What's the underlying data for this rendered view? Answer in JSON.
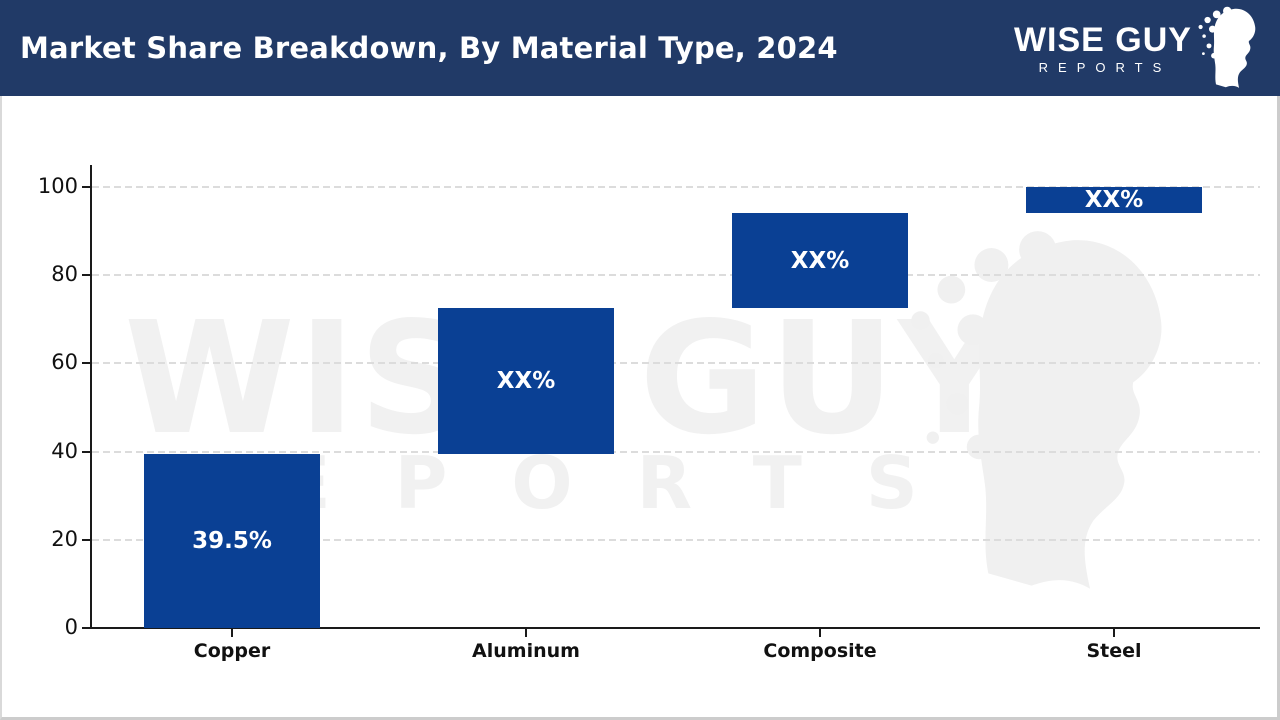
{
  "header": {
    "title": "Market Share Breakdown, By Material Type, 2024",
    "logo": {
      "name": "WISE GUY",
      "subtitle": "REPORTS",
      "face_icon": "dotted-head-profile"
    }
  },
  "watermark": {
    "line1": "WISE GUY",
    "line2": "REPORTS",
    "face_icon": "dotted-head-profile"
  },
  "chart_data": {
    "type": "bar",
    "subtype": "waterfall",
    "title": "Market Share Breakdown, By Material Type, 2024",
    "categories": [
      "Copper",
      "Aluminum",
      "Composite",
      "Steel"
    ],
    "segments": [
      {
        "category": "Copper",
        "start": 0,
        "end": 39.5,
        "label": "39.5%"
      },
      {
        "category": "Aluminum",
        "start": 39.5,
        "end": 72.5,
        "label": "XX%"
      },
      {
        "category": "Composite",
        "start": 72.5,
        "end": 94,
        "label": "XX%"
      },
      {
        "category": "Steel",
        "start": 94,
        "end": 100,
        "label": "XX%"
      }
    ],
    "yticks": [
      0,
      20,
      40,
      60,
      80,
      100
    ],
    "ylim": [
      0,
      105
    ],
    "xlabel": "",
    "ylabel": "",
    "grid": "horizontal-dashed",
    "legend": "none",
    "bar_color": "#0a4094",
    "bar_label_color": "#ffffff"
  },
  "colors": {
    "header_bg": "#213a67",
    "bar": "#0a4094",
    "grid": "#dcdcdc",
    "axis": "#1a1a1a",
    "watermark": "#f1f1f1"
  }
}
